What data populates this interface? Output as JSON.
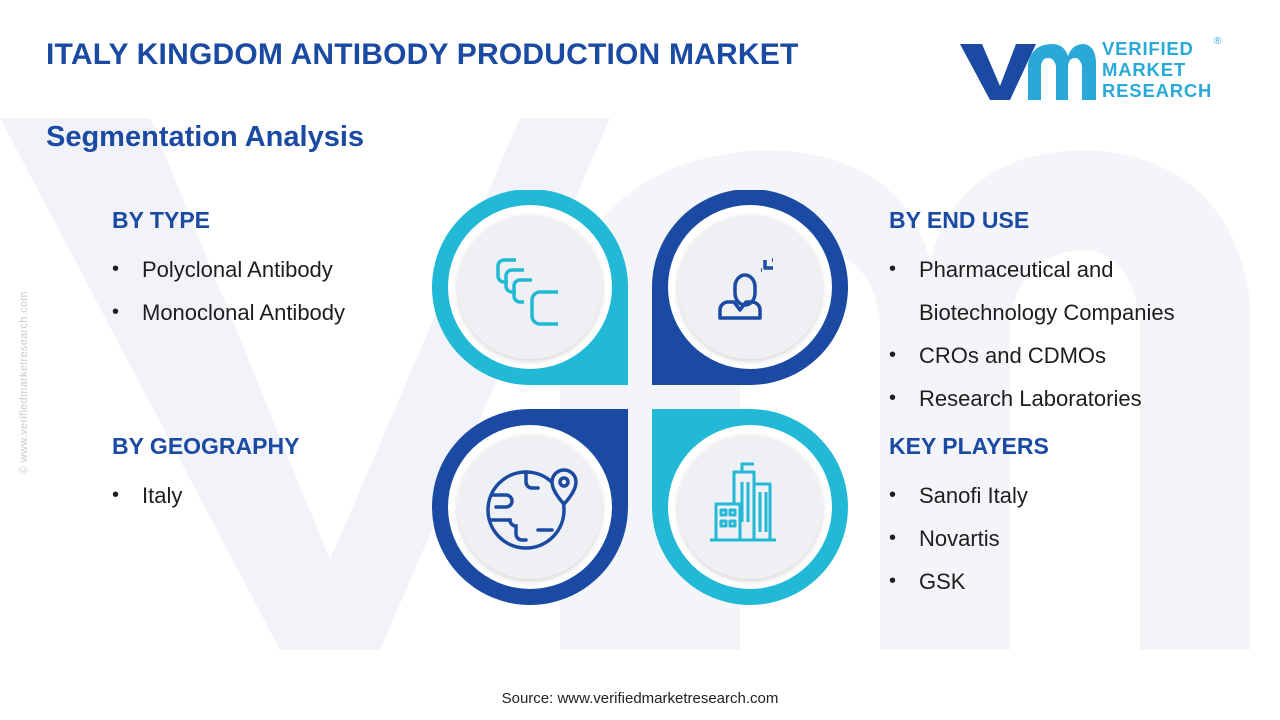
{
  "header": {
    "title": "ITALY KINGDOM ANTIBODY PRODUCTION MARKET",
    "subtitle": "Segmentation Analysis"
  },
  "logo": {
    "lines": [
      "VERIFIED",
      "MARKET",
      "RESEARCH"
    ],
    "registered": "®"
  },
  "watermark_side_text": "© www.verifiedmarketresearch.com",
  "segments": {
    "by_type": {
      "heading": "BY TYPE",
      "items": [
        "Polyclonal Antibody",
        "Monoclonal Antibody"
      ]
    },
    "by_end_use": {
      "heading": "BY END USE",
      "items": [
        "Pharmaceutical and Biotechnology Companies",
        "CROs and CDMOs",
        "Research Laboratories"
      ]
    },
    "by_geography": {
      "heading": "BY GEOGRAPHY",
      "items": [
        "Italy"
      ]
    },
    "key_players": {
      "heading": "KEY PLAYERS",
      "items": [
        "Sanofi Italy",
        "Novartis",
        "GSK"
      ]
    }
  },
  "icons": [
    "antibody-blocks-icon",
    "user-profile-icon",
    "globe-location-icon",
    "city-buildings-icon"
  ],
  "colors": {
    "primary_blue": "#1b4aa3",
    "cyan": "#22b9d6",
    "inner_circle": "#eef0f3",
    "text": "#1d1d1d"
  },
  "footer": {
    "source": "Source: www.verifiedmarketresearch.com"
  }
}
